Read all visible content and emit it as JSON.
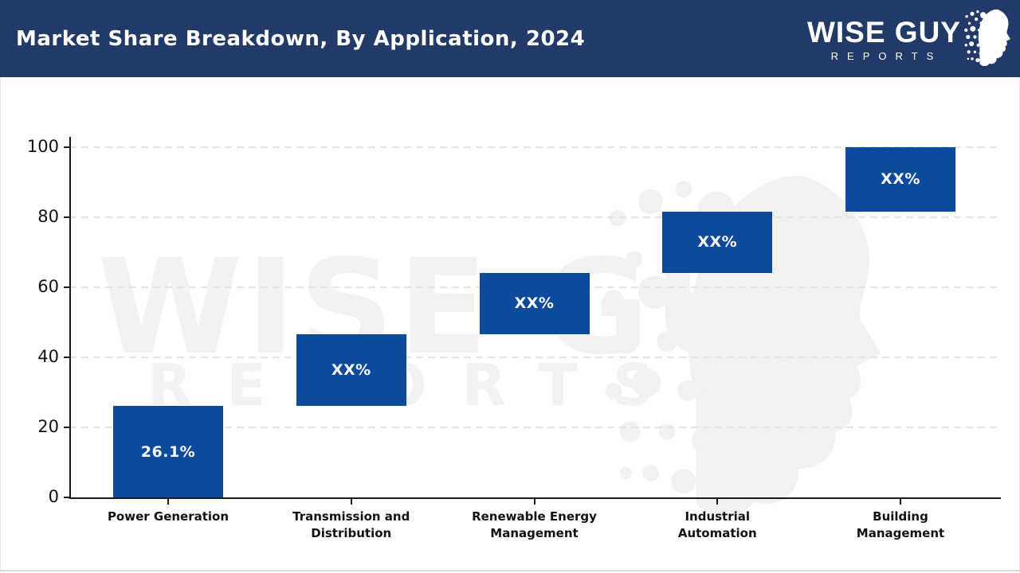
{
  "header": {
    "title": "Market Share Breakdown, By Application, 2024",
    "bg_color": "#223a67"
  },
  "logo": {
    "line1": "WISE GUY",
    "line2": "REPORTS",
    "icon": "face-profile-dots-icon",
    "color": "#ffffff"
  },
  "watermark": {
    "line1": "WISE GUY",
    "line2": "REPORTS",
    "icon": "face-profile-dots-icon",
    "color": "#f2f2f2"
  },
  "chart_data": {
    "type": "bar",
    "subtype": "waterfall",
    "title": "Market Share Breakdown, By Application, 2024",
    "xlabel": "",
    "ylabel": "",
    "ylim": [
      0,
      105
    ],
    "yticks": [
      0,
      20,
      40,
      60,
      80,
      100
    ],
    "grid": "horizontal-dashed",
    "bar_color": "#0c4a9e",
    "bar_label_color": "#ffffff",
    "categories": [
      "Power Generation",
      "Transmission and\nDistribution",
      "Renewable Energy\nManagement",
      "Industrial\nAutomation",
      "Building\nManagement"
    ],
    "segments": [
      {
        "category": "Power Generation",
        "start": 0,
        "end": 26.1,
        "label": "26.1%"
      },
      {
        "category": "Transmission and\nDistribution",
        "start": 26.1,
        "end": 46.7,
        "label": "XX%"
      },
      {
        "category": "Renewable Energy\nManagement",
        "start": 46.7,
        "end": 64.2,
        "label": "XX%"
      },
      {
        "category": "Industrial\nAutomation",
        "start": 64.2,
        "end": 81.6,
        "label": "XX%"
      },
      {
        "category": "Building\nManagement",
        "start": 81.6,
        "end": 100,
        "label": "XX%"
      }
    ]
  }
}
